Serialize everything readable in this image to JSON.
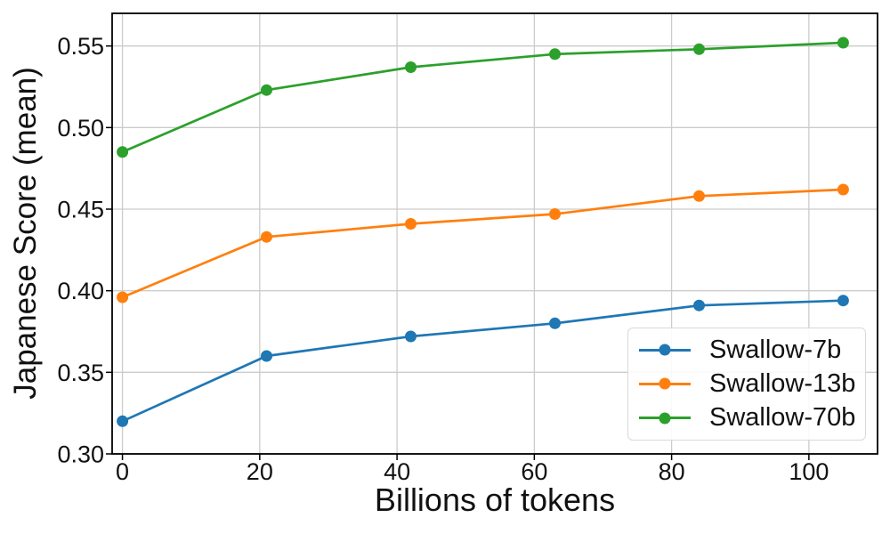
{
  "chart_data": {
    "type": "line",
    "title": "",
    "xlabel": "Billions of tokens",
    "ylabel": "Japanese Score (mean)",
    "x": [
      0,
      21,
      42,
      63,
      84,
      105
    ],
    "series": [
      {
        "name": "Swallow-7b",
        "color": "#1f77b4",
        "values": [
          0.32,
          0.36,
          0.372,
          0.38,
          0.391,
          0.394
        ]
      },
      {
        "name": "Swallow-13b",
        "color": "#ff7f0e",
        "values": [
          0.396,
          0.433,
          0.441,
          0.447,
          0.458,
          0.462
        ]
      },
      {
        "name": "Swallow-70b",
        "color": "#2ca02c",
        "values": [
          0.485,
          0.523,
          0.537,
          0.545,
          0.548,
          0.552
        ]
      }
    ],
    "xticks": [
      0,
      20,
      40,
      60,
      80,
      100
    ],
    "xtick_labels": [
      "0",
      "20",
      "40",
      "60",
      "80",
      "100"
    ],
    "yticks": [
      0.3,
      0.35,
      0.4,
      0.45,
      0.5,
      0.55
    ],
    "ytick_labels": [
      "0.30",
      "0.35",
      "0.40",
      "0.45",
      "0.50",
      "0.55"
    ],
    "xlim": [
      -1.5,
      110
    ],
    "ylim": [
      0.3,
      0.57
    ],
    "grid": true,
    "legend_position": "lower right",
    "colors": {
      "background": "#ffffff",
      "grid": "#cccccc",
      "spine": "#000000",
      "tick_text": "#111111",
      "legend_border": "#d9d9d9"
    }
  }
}
